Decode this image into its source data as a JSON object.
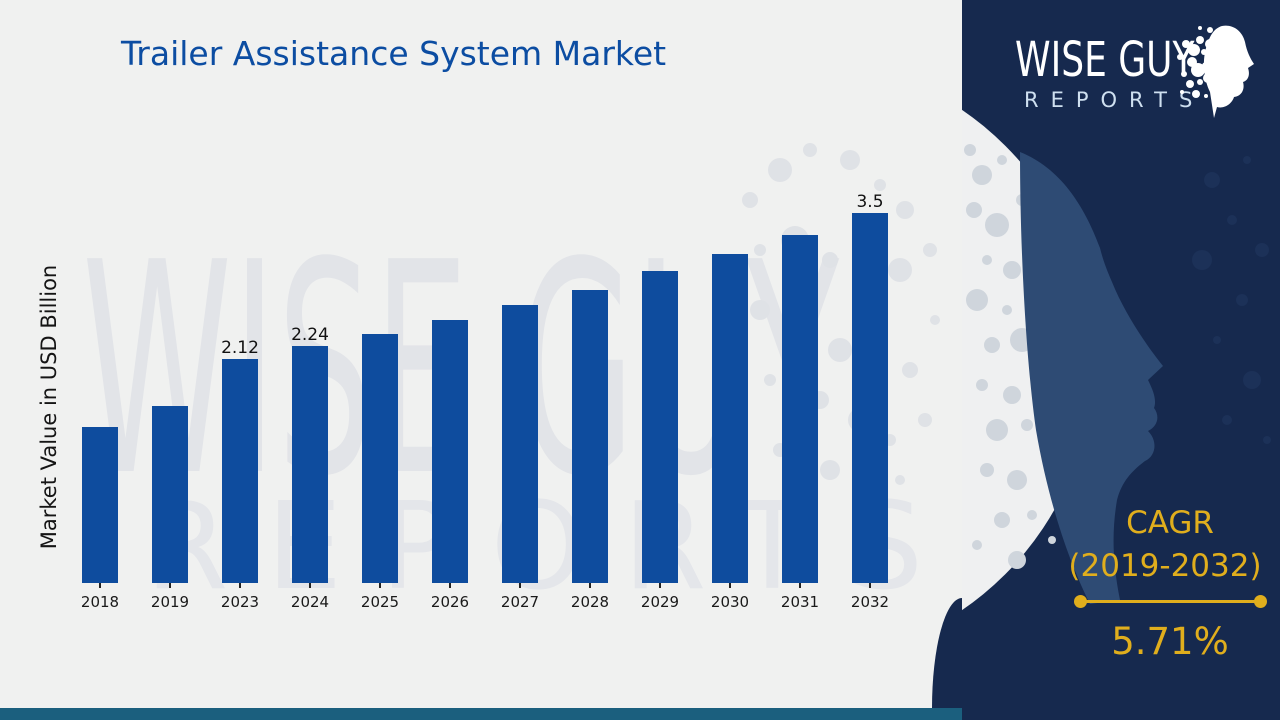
{
  "header": {
    "title": "Trailer Assistance System Market"
  },
  "watermark": {
    "line1": "WISE GUY",
    "line2": "REPORTS"
  },
  "logo": {
    "brand": "WISE GUY",
    "sub": "REPORTS"
  },
  "cagr": {
    "label": "CAGR",
    "range": "(2019-2032)",
    "value": "5.71%"
  },
  "colors": {
    "bar": "#0e4c9e",
    "title": "#0c4da2",
    "navy_panel": "#16294e",
    "gold": "#e0ae1d",
    "teal_strip": "#1b5f7e",
    "background": "#f0f1f0"
  },
  "chart_data": {
    "type": "bar",
    "title": "Trailer Assistance System Market",
    "xlabel": "",
    "ylabel": "Market Value in USD Billion",
    "categories": [
      "2018",
      "2019",
      "2023",
      "2024",
      "2025",
      "2026",
      "2027",
      "2028",
      "2029",
      "2030",
      "2031",
      "2032"
    ],
    "values": [
      1.48,
      1.67,
      2.12,
      2.24,
      2.36,
      2.49,
      2.63,
      2.77,
      2.95,
      3.11,
      3.29,
      3.5
    ],
    "visible_value_labels": {
      "2023": "2.12",
      "2024": "2.24",
      "2032": "3.5"
    },
    "ylim": [
      0,
      3.9
    ],
    "grid": false,
    "legend": null,
    "bar_color": "#0e4c9e"
  }
}
